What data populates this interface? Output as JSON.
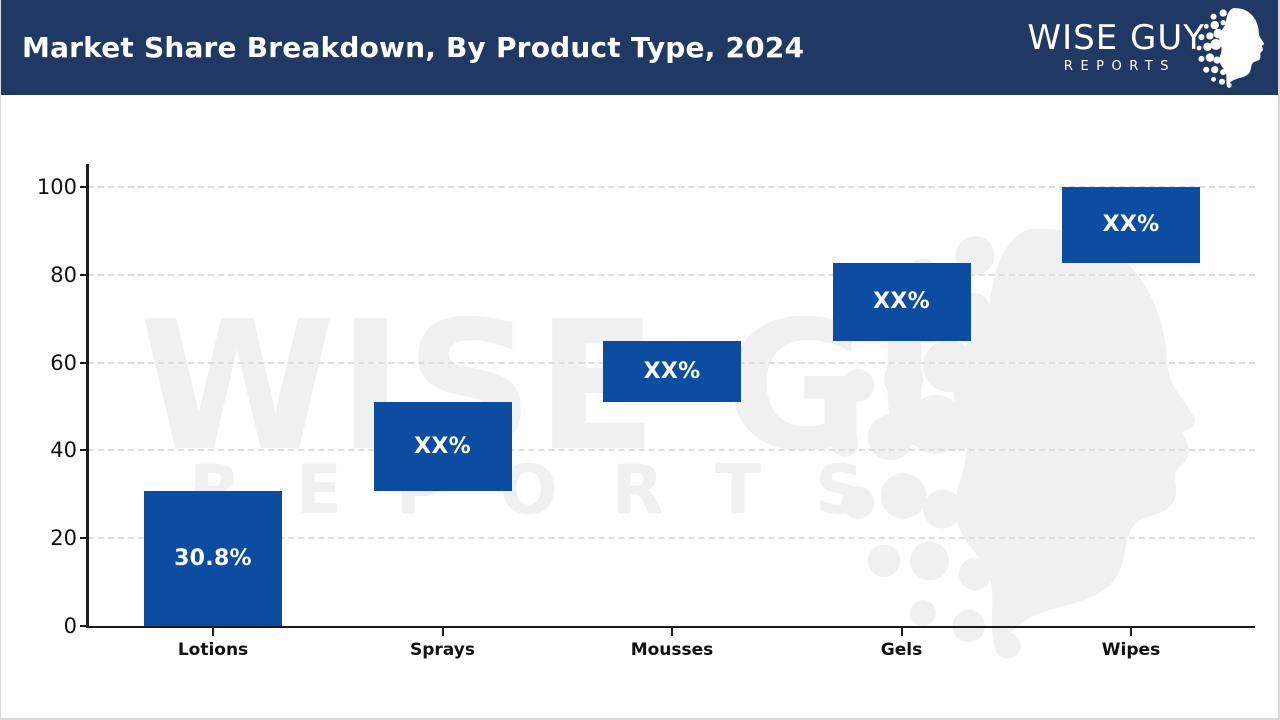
{
  "header": {
    "title": "Market Share Breakdown, By Product Type, 2024",
    "logo": {
      "line1": "WISE GUY",
      "line2": "REPORTS"
    }
  },
  "watermark": {
    "line1": "WISE GUY",
    "line2": "REPORTS"
  },
  "colors": {
    "header_bg": "#1f3864",
    "bar": "#0c4da2",
    "grid": "#dddddd",
    "axis": "#1a1a1a",
    "bar_label_text": "#ffffff",
    "watermark": "#f0f0f0",
    "page_border": "#d9d9d9"
  },
  "chart_data": {
    "type": "bar",
    "subtype": "waterfall",
    "title": "Market Share Breakdown, By Product Type, 2024",
    "categories": [
      "Lotions",
      "Sprays",
      "Mousses",
      "Gels",
      "Wipes"
    ],
    "segments": [
      {
        "category": "Lotions",
        "start": 0,
        "end": 30.8,
        "value": 30.8,
        "label": "30.8%"
      },
      {
        "category": "Sprays",
        "start": 30.8,
        "end": 51.1,
        "value": 20.3,
        "label": "XX%"
      },
      {
        "category": "Mousses",
        "start": 51.1,
        "end": 65.0,
        "value": 13.9,
        "label": "XX%"
      },
      {
        "category": "Gels",
        "start": 65.0,
        "end": 82.8,
        "value": 17.8,
        "label": "XX%"
      },
      {
        "category": "Wipes",
        "start": 82.8,
        "end": 100.0,
        "value": 17.2,
        "label": "XX%"
      }
    ],
    "yticks": [
      0,
      20,
      40,
      60,
      80,
      100
    ],
    "ylim": [
      0,
      105
    ],
    "xlabel": "",
    "ylabel": "",
    "grid": "horizontal-dashed",
    "legend": "none",
    "bar_color": "#0c4da2"
  }
}
